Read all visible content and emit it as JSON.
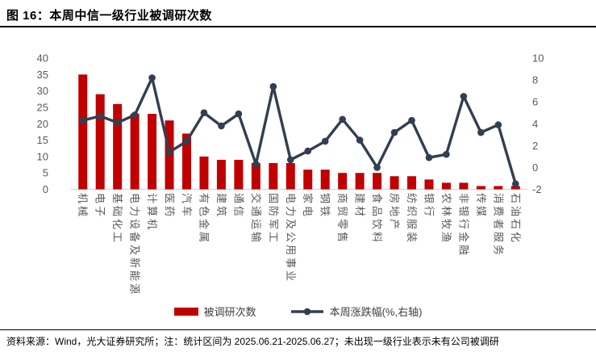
{
  "header": {
    "title": "图 16：本周中信一级行业被调研次数"
  },
  "footer": {
    "text": "资料来源：Wind，光大证券研究所；注：统计区间为 2025.06.21-2025.06.27；未出现一级行业表示未有公司被调研"
  },
  "colors": {
    "bar": "#C00000",
    "line": "#333F50",
    "axis_text": "#595959",
    "baseline": "#D9D9D9",
    "title_text": "#000000"
  },
  "legend": [
    {
      "label": "被调研次数",
      "marker": "bar-swatch"
    },
    {
      "label": "本周涨跌幅(%,右轴)",
      "marker": "line-dot-swatch"
    }
  ],
  "chart_data": {
    "type": "bar",
    "title": "本周中信一级行业被调研次数",
    "categories": [
      "机械",
      "电子",
      "基础化工",
      "电力设备及新能源",
      "计算机",
      "医药",
      "汽车",
      "有色金属",
      "建筑",
      "通信",
      "交通运输",
      "国防军工",
      "电力及公用事业",
      "家电",
      "钢铁",
      "商贸零售",
      "建材",
      "食品饮料",
      "房地产",
      "纺织服装",
      "银行",
      "农林牧渔",
      "非银行金融",
      "传媒",
      "消费者服务",
      "石油石化"
    ],
    "series": [
      {
        "name": "被调研次数",
        "type": "bar",
        "axis": "left",
        "color": "#C00000",
        "values": [
          35,
          29,
          26,
          23,
          23,
          21,
          17,
          10,
          9,
          9,
          8,
          8,
          8,
          6,
          6,
          5,
          5,
          5,
          4,
          4,
          3,
          2,
          2,
          1,
          1,
          1
        ]
      },
      {
        "name": "本周涨跌幅(%,右轴)",
        "type": "line",
        "axis": "right",
        "color": "#333F50",
        "values": [
          4.3,
          4.7,
          4.1,
          4.8,
          8.2,
          1.4,
          2.4,
          5.0,
          3.8,
          4.9,
          0.3,
          7.4,
          0.7,
          1.5,
          2.4,
          4.4,
          2.5,
          0.0,
          3.2,
          4.3,
          0.9,
          1.2,
          6.5,
          3.2,
          3.9,
          -1.5
        ]
      }
    ],
    "left_axis": {
      "min": 0,
      "max": 40,
      "step": 5,
      "ticks": [
        0,
        5,
        10,
        15,
        20,
        25,
        30,
        35,
        40
      ]
    },
    "right_axis": {
      "min": -2,
      "max": 10,
      "step": 2,
      "ticks": [
        -2,
        0,
        2,
        4,
        6,
        8,
        10
      ]
    },
    "grid": false,
    "legend_position": "bottom",
    "xlabel": "",
    "ylabel": ""
  }
}
